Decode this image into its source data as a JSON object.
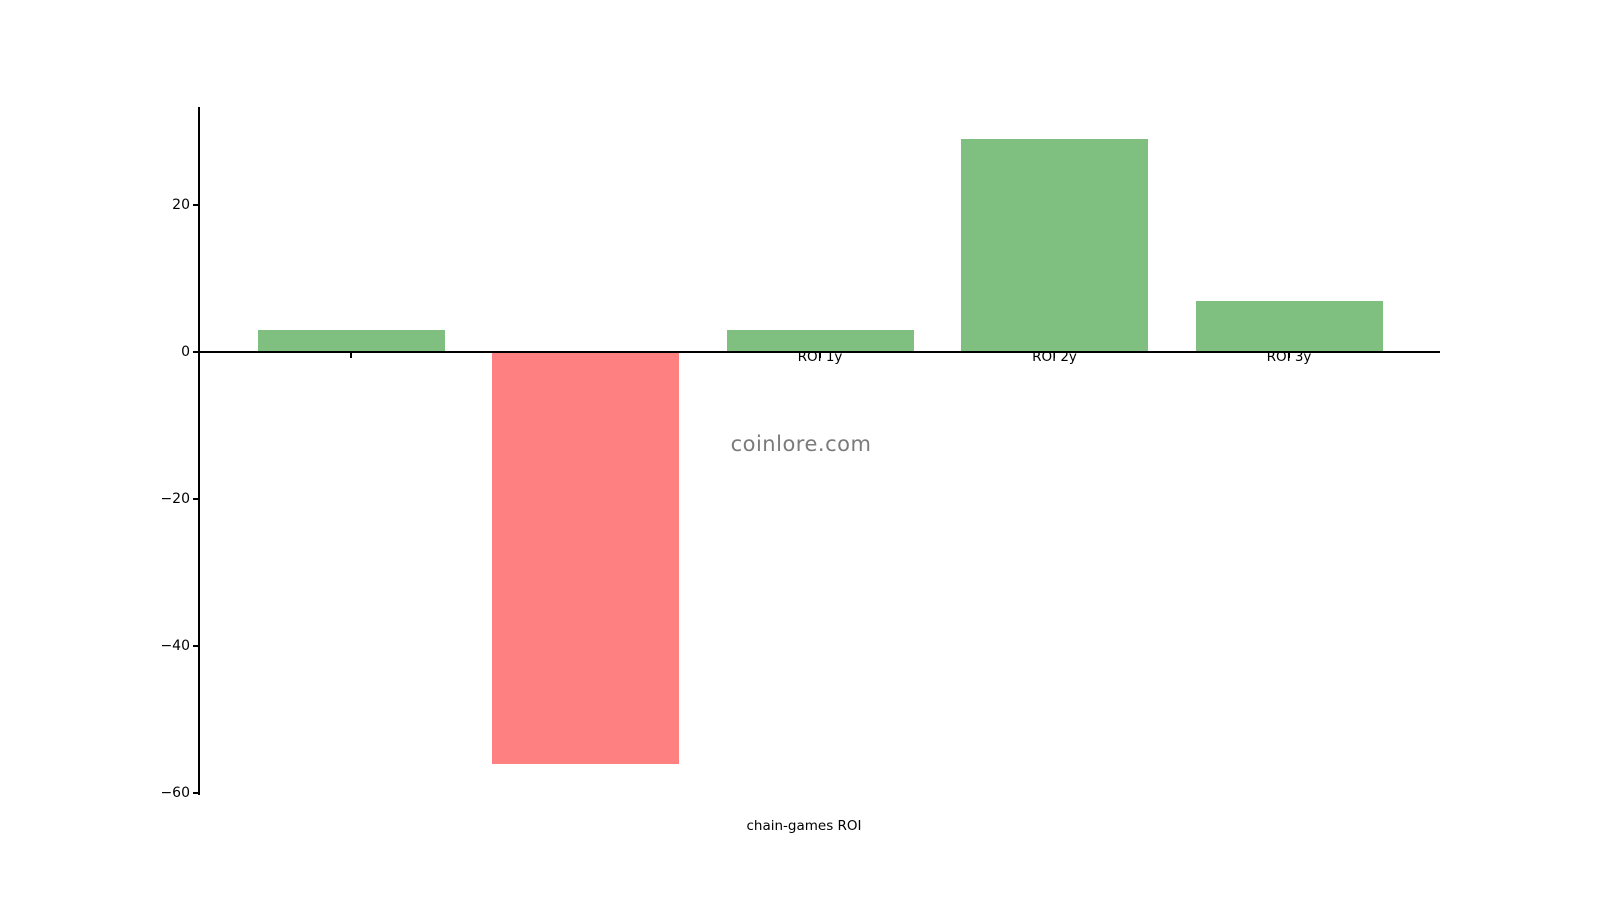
{
  "page": {
    "background_color": "#ffffff"
  },
  "watermark": {
    "text": "coinlore.com",
    "color": "#7b7b7b"
  },
  "chart_data": {
    "type": "bar",
    "title": "",
    "xlabel": "chain-games ROI",
    "ylabel": "",
    "categories": [
      "",
      "",
      "ROI 1y",
      "ROI 2y",
      "ROI 3y"
    ],
    "values": [
      3,
      -56,
      3,
      29,
      7
    ],
    "yticks": [
      20,
      0,
      -20,
      -40,
      -60
    ],
    "ylim": [
      -60.3,
      33.3
    ],
    "grid": false,
    "legend": null,
    "colors": {
      "positive_bar": "#7fbf7f",
      "negative_bar": "#ff8080",
      "axis": "#000000",
      "tick_text": "#000000"
    }
  }
}
